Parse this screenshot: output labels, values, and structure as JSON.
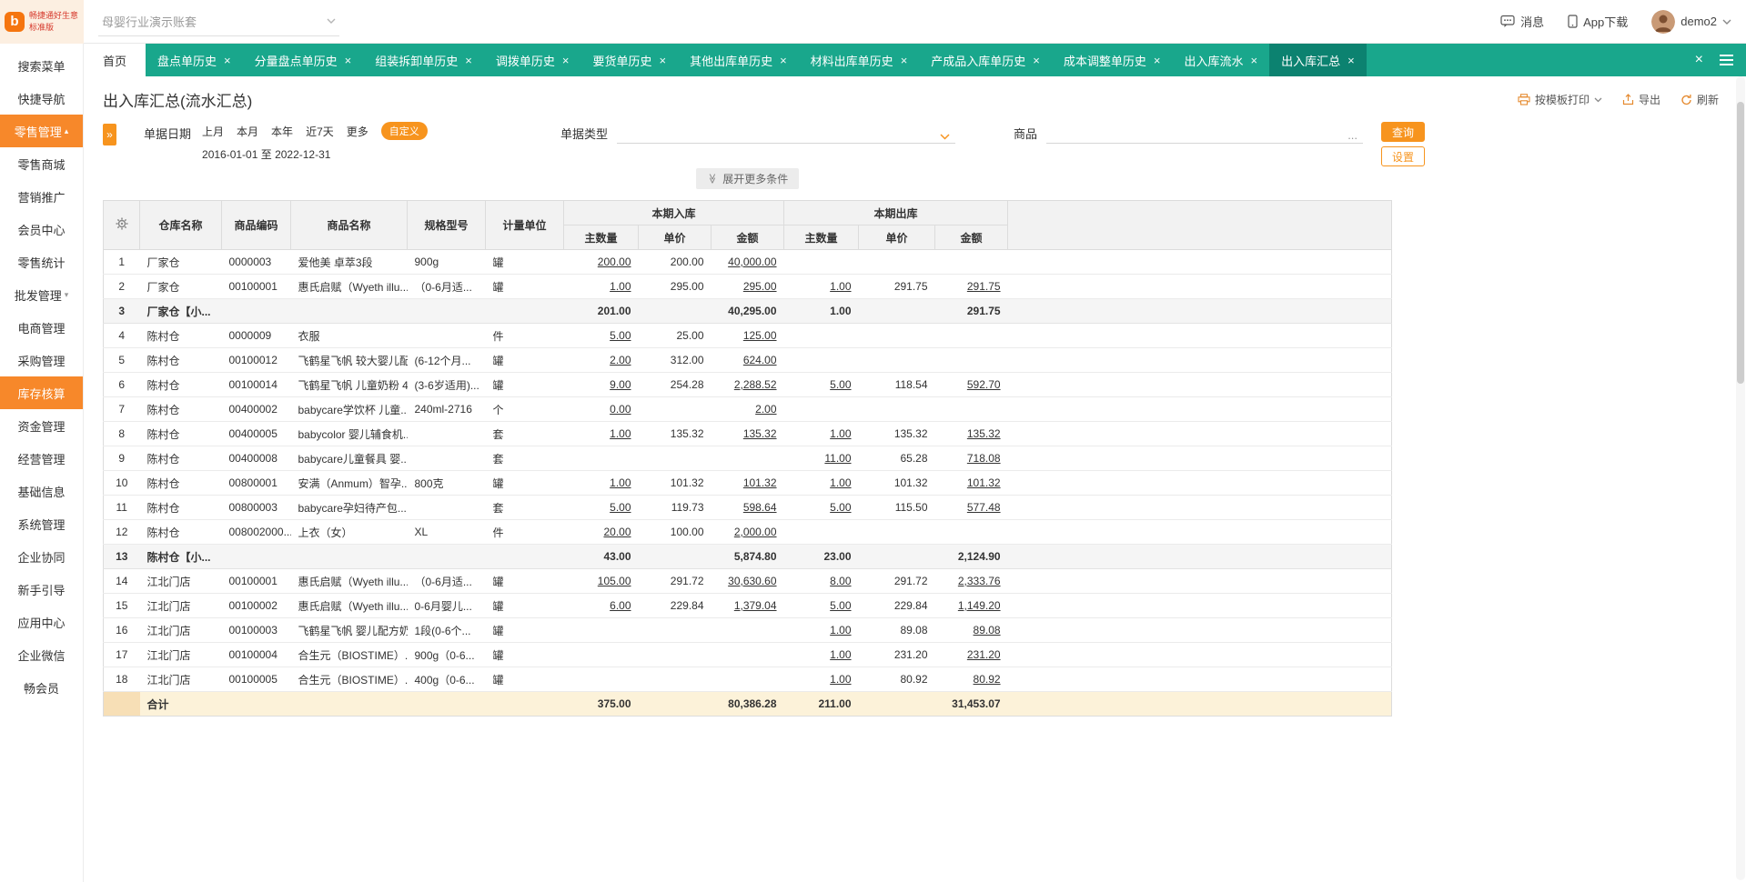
{
  "topbar": {
    "logo_mark": "b",
    "logo_title": "畅捷通好生意",
    "logo_subtitle": "标准版",
    "account_placeholder": "母婴行业演示账套",
    "messages_label": "消息",
    "app_label": "App下载",
    "username": "demo2"
  },
  "sidebar": {
    "items": [
      {
        "label": "搜索菜单",
        "type": "plain"
      },
      {
        "label": "快捷导航",
        "type": "plain"
      },
      {
        "label": "零售管理",
        "type": "group-active",
        "arrow": "up"
      },
      {
        "label": "零售商城",
        "type": "sub"
      },
      {
        "label": "营销推广",
        "type": "sub"
      },
      {
        "label": "会员中心",
        "type": "sub"
      },
      {
        "label": "零售统计",
        "type": "sub"
      },
      {
        "label": "批发管理",
        "type": "plain",
        "arrow": "down"
      },
      {
        "label": "电商管理",
        "type": "plain"
      },
      {
        "label": "采购管理",
        "type": "plain"
      },
      {
        "label": "库存核算",
        "type": "active"
      },
      {
        "label": "资金管理",
        "type": "plain"
      },
      {
        "label": "经营管理",
        "type": "plain"
      },
      {
        "label": "基础信息",
        "type": "plain"
      },
      {
        "label": "系统管理",
        "type": "plain"
      },
      {
        "label": "企业协同",
        "type": "plain"
      },
      {
        "label": "新手引导",
        "type": "plain"
      },
      {
        "label": "应用中心",
        "type": "plain"
      },
      {
        "label": "企业微信",
        "type": "plain"
      },
      {
        "label": "畅会员",
        "type": "plain"
      }
    ]
  },
  "tabs": [
    {
      "label": "首页",
      "closable": false,
      "state": "home"
    },
    {
      "label": "盘点单历史",
      "closable": true,
      "state": ""
    },
    {
      "label": "分量盘点单历史",
      "closable": true,
      "state": ""
    },
    {
      "label": "组装拆卸单历史",
      "closable": true,
      "state": ""
    },
    {
      "label": "调拨单历史",
      "closable": true,
      "state": ""
    },
    {
      "label": "要货单历史",
      "closable": true,
      "state": ""
    },
    {
      "label": "其他出库单历史",
      "closable": true,
      "state": ""
    },
    {
      "label": "材料出库单历史",
      "closable": true,
      "state": ""
    },
    {
      "label": "产成品入库单历史",
      "closable": true,
      "state": ""
    },
    {
      "label": "成本调整单历史",
      "closable": true,
      "state": ""
    },
    {
      "label": "出入库流水",
      "closable": true,
      "state": ""
    },
    {
      "label": "出入库汇总",
      "closable": true,
      "state": "active"
    }
  ],
  "page": {
    "title": "出入库汇总(流水汇总)",
    "actions": {
      "print": "按模板打印",
      "export": "导出",
      "refresh": "刷新"
    }
  },
  "filters": {
    "date_label": "单据日期",
    "quick_links": [
      "上月",
      "本月",
      "本年",
      "近7天",
      "更多"
    ],
    "custom_badge": "自定义",
    "date_range": "2016-01-01 至 2022-12-31",
    "doc_type_label": "单据类型",
    "product_label": "商品",
    "search_button": "查询",
    "settings_button": "设置",
    "expand_more": "展开更多条件"
  },
  "table": {
    "group_headers": {
      "in": "本期入库",
      "out": "本期出库"
    },
    "columns": {
      "warehouse": "仓库名称",
      "code": "商品编码",
      "name": "商品名称",
      "spec": "规格型号",
      "unit": "计量单位",
      "qty": "主数量",
      "price": "单价",
      "amount": "金额"
    },
    "rows": [
      {
        "type": "data",
        "idx": "1",
        "warehouse": "厂家仓",
        "code": "0000003",
        "name": "爱他美 卓萃3段",
        "spec": "900g",
        "unit": "罐",
        "in_qty": "200.00",
        "in_price": "200.00",
        "in_amount": "40,000.00",
        "out_qty": "",
        "out_price": "",
        "out_amount": ""
      },
      {
        "type": "data",
        "idx": "2",
        "warehouse": "厂家仓",
        "code": "00100001",
        "name": "惠氏启赋（Wyeth illu...",
        "spec": "（0-6月适...",
        "unit": "罐",
        "in_qty": "1.00",
        "in_price": "295.00",
        "in_amount": "295.00",
        "out_qty": "1.00",
        "out_price": "291.75",
        "out_amount": "291.75"
      },
      {
        "type": "subtotal",
        "idx": "3",
        "warehouse": "厂家仓【小...",
        "code": "",
        "name": "",
        "spec": "",
        "unit": "",
        "in_qty": "201.00",
        "in_price": "",
        "in_amount": "40,295.00",
        "out_qty": "1.00",
        "out_price": "",
        "out_amount": "291.75"
      },
      {
        "type": "data",
        "idx": "4",
        "warehouse": "陈村仓",
        "code": "0000009",
        "name": "衣服",
        "spec": "",
        "unit": "件",
        "in_qty": "5.00",
        "in_price": "25.00",
        "in_amount": "125.00",
        "out_qty": "",
        "out_price": "",
        "out_amount": ""
      },
      {
        "type": "data",
        "idx": "5",
        "warehouse": "陈村仓",
        "code": "00100012",
        "name": "飞鹤星飞帆 较大婴儿配...",
        "spec": "(6-12个月...",
        "unit": "罐",
        "in_qty": "2.00",
        "in_price": "312.00",
        "in_amount": "624.00",
        "out_qty": "",
        "out_price": "",
        "out_amount": ""
      },
      {
        "type": "data",
        "idx": "6",
        "warehouse": "陈村仓",
        "code": "00100014",
        "name": "飞鹤星飞帆 儿童奶粉 4...",
        "spec": "(3-6岁适用)...",
        "unit": "罐",
        "in_qty": "9.00",
        "in_price": "254.28",
        "in_amount": "2,288.52",
        "out_qty": "5.00",
        "out_price": "118.54",
        "out_amount": "592.70"
      },
      {
        "type": "data",
        "idx": "7",
        "warehouse": "陈村仓",
        "code": "00400002",
        "name": "babycare学饮杯 儿童...",
        "spec": "240ml-2716",
        "unit": "个",
        "in_qty": "0.00",
        "in_price": "",
        "in_amount": "2.00",
        "out_qty": "",
        "out_price": "",
        "out_amount": ""
      },
      {
        "type": "data",
        "idx": "8",
        "warehouse": "陈村仓",
        "code": "00400005",
        "name": "babycolor 婴儿辅食机...",
        "spec": "",
        "unit": "套",
        "in_qty": "1.00",
        "in_price": "135.32",
        "in_amount": "135.32",
        "out_qty": "1.00",
        "out_price": "135.32",
        "out_amount": "135.32"
      },
      {
        "type": "data",
        "idx": "9",
        "warehouse": "陈村仓",
        "code": "00400008",
        "name": "babycare儿童餐具 婴...",
        "spec": "",
        "unit": "套",
        "in_qty": "",
        "in_price": "",
        "in_amount": "",
        "out_qty": "11.00",
        "out_price": "65.28",
        "out_amount": "718.08"
      },
      {
        "type": "data",
        "idx": "10",
        "warehouse": "陈村仓",
        "code": "00800001",
        "name": "安满（Anmum）智孕...",
        "spec": "800克",
        "unit": "罐",
        "in_qty": "1.00",
        "in_price": "101.32",
        "in_amount": "101.32",
        "out_qty": "1.00",
        "out_price": "101.32",
        "out_amount": "101.32"
      },
      {
        "type": "data",
        "idx": "11",
        "warehouse": "陈村仓",
        "code": "00800003",
        "name": "babycare孕妇待产包...",
        "spec": "",
        "unit": "套",
        "in_qty": "5.00",
        "in_price": "119.73",
        "in_amount": "598.64",
        "out_qty": "5.00",
        "out_price": "115.50",
        "out_amount": "577.48"
      },
      {
        "type": "data",
        "idx": "12",
        "warehouse": "陈村仓",
        "code": "008002000...",
        "name": "上衣（女）",
        "spec": "XL",
        "unit": "件",
        "in_qty": "20.00",
        "in_price": "100.00",
        "in_amount": "2,000.00",
        "out_qty": "",
        "out_price": "",
        "out_amount": ""
      },
      {
        "type": "subtotal",
        "idx": "13",
        "warehouse": "陈村仓【小...",
        "code": "",
        "name": "",
        "spec": "",
        "unit": "",
        "in_qty": "43.00",
        "in_price": "",
        "in_amount": "5,874.80",
        "out_qty": "23.00",
        "out_price": "",
        "out_amount": "2,124.90"
      },
      {
        "type": "data",
        "idx": "14",
        "warehouse": "江北门店",
        "code": "00100001",
        "name": "惠氏启赋（Wyeth illu...",
        "spec": "（0-6月适...",
        "unit": "罐",
        "in_qty": "105.00",
        "in_price": "291.72",
        "in_amount": "30,630.60",
        "out_qty": "8.00",
        "out_price": "291.72",
        "out_amount": "2,333.76"
      },
      {
        "type": "data",
        "idx": "15",
        "warehouse": "江北门店",
        "code": "00100002",
        "name": "惠氏启赋（Wyeth illu...",
        "spec": "0-6月婴儿...",
        "unit": "罐",
        "in_qty": "6.00",
        "in_price": "229.84",
        "in_amount": "1,379.04",
        "out_qty": "5.00",
        "out_price": "229.84",
        "out_amount": "1,149.20"
      },
      {
        "type": "data",
        "idx": "16",
        "warehouse": "江北门店",
        "code": "00100003",
        "name": "飞鹤星飞帆 婴儿配方奶...",
        "spec": "1段(0-6个...",
        "unit": "罐",
        "in_qty": "",
        "in_price": "",
        "in_amount": "",
        "out_qty": "1.00",
        "out_price": "89.08",
        "out_amount": "89.08"
      },
      {
        "type": "data",
        "idx": "17",
        "warehouse": "江北门店",
        "code": "00100004",
        "name": "合生元（BIOSTIME）...",
        "spec": "900g（0-6...",
        "unit": "罐",
        "in_qty": "",
        "in_price": "",
        "in_amount": "",
        "out_qty": "1.00",
        "out_price": "231.20",
        "out_amount": "231.20"
      },
      {
        "type": "data",
        "idx": "18",
        "warehouse": "江北门店",
        "code": "00100005",
        "name": "合生元（BIOSTIME）...",
        "spec": "400g（0-6...",
        "unit": "罐",
        "in_qty": "",
        "in_price": "",
        "in_amount": "",
        "out_qty": "1.00",
        "out_price": "80.92",
        "out_amount": "80.92"
      }
    ],
    "total": {
      "label": "合计",
      "in_qty": "375.00",
      "in_price": "",
      "in_amount": "80,386.28",
      "out_qty": "211.00",
      "out_price": "",
      "out_amount": "31,453.07"
    }
  }
}
